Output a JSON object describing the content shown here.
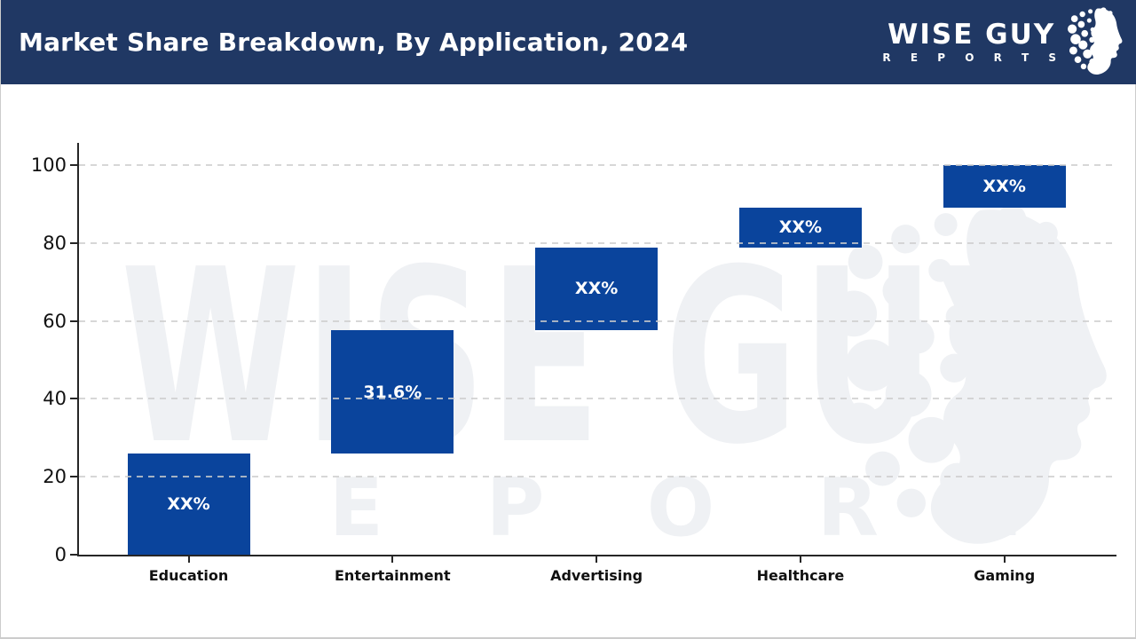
{
  "header": {
    "title": "Market Share Breakdown, By Application, 2024",
    "logo": {
      "line1": "WISE GUY",
      "line2": "R E P O R T S"
    }
  },
  "watermark": {
    "line1": "WISE GUY",
    "line2": "R E P O R T S"
  },
  "colors": {
    "header_bg": "#203864",
    "bar_blue": "#0a449c",
    "axis": "#262626",
    "grid": "#cdcdcd",
    "watermark": "#eff1f4",
    "value_label": "#ffffff"
  },
  "chart_data": {
    "type": "bar",
    "subtype": "waterfall",
    "title": "Market Share Breakdown, By Application, 2024",
    "xlabel": "",
    "ylabel": "",
    "categories": [
      "Education",
      "Entertainment",
      "Advertising",
      "Healthcare",
      "Gaming"
    ],
    "segments": [
      {
        "category": "Education",
        "label": "XX%",
        "start": 0,
        "end": 26.0,
        "value": 26.0
      },
      {
        "category": "Entertainment",
        "label": "31.6%",
        "start": 26.0,
        "end": 57.6,
        "value": 31.6
      },
      {
        "category": "Advertising",
        "label": "XX%",
        "start": 57.6,
        "end": 78.9,
        "value": 21.3
      },
      {
        "category": "Healthcare",
        "label": "XX%",
        "start": 78.9,
        "end": 89.1,
        "value": 10.2
      },
      {
        "category": "Gaming",
        "label": "XX%",
        "start": 89.1,
        "end": 100.0,
        "value": 10.9
      }
    ],
    "yticks": [
      0,
      20,
      40,
      60,
      80,
      100
    ],
    "ylim": [
      0,
      106
    ],
    "grid": "horizontal dashed",
    "legend": "none",
    "bar_color": "#0a449c"
  }
}
